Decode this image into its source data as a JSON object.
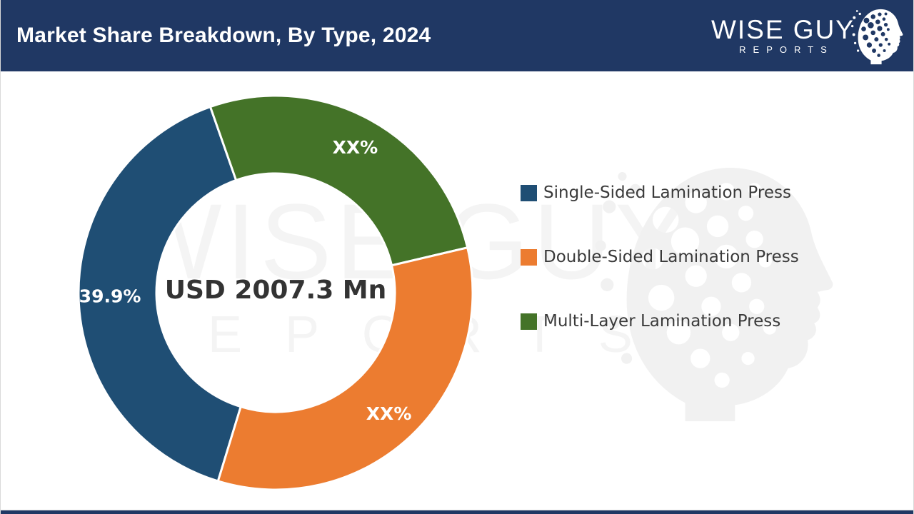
{
  "header": {
    "title": "Market Share Breakdown, By Type, 2024",
    "logo": {
      "wordmark": "WISE GUY",
      "subtitle": "REPORTS"
    }
  },
  "chart_data": {
    "type": "pie",
    "subtype": "donut",
    "title": "Market Share Breakdown, By Type, 2024",
    "center_label": "USD 2007.3 Mn",
    "start_angle_deg": 197,
    "direction": "clockwise",
    "segments": [
      {
        "name": "Single-Sided Lamination Press",
        "display_label": "39.9%",
        "value_pct": 39.9,
        "color": "#1f4e74",
        "label_color": "#ffffff"
      },
      {
        "name": "Multi-Layer Lamination Press",
        "display_label": "XX%",
        "value_pct": 26.7,
        "color": "#447328",
        "label_color": "#ffffff"
      },
      {
        "name": "Double-Sided Lamination Press",
        "display_label": "XX%",
        "value_pct": 33.4,
        "color": "#ec7c30",
        "label_color": "#ffffff"
      }
    ]
  },
  "legend": {
    "items": [
      {
        "label": "Single-Sided Lamination Press",
        "color": "#1f4e74"
      },
      {
        "label": "Double-Sided Lamination Press",
        "color": "#ec7c30"
      },
      {
        "label": "Multi-Layer Lamination Press",
        "color": "#447328"
      }
    ]
  },
  "watermark": {
    "wordmark": "WISE GUY",
    "subtitle": "REPORTS"
  },
  "colors": {
    "header_bg": "#203864",
    "bottom_bar": "#203864",
    "center_text": "#333333",
    "legend_text": "#3a3a3a",
    "watermark": "#f4f4f4",
    "watermark_head": "#f1f1f1",
    "segment_divider": "#ffffff"
  }
}
